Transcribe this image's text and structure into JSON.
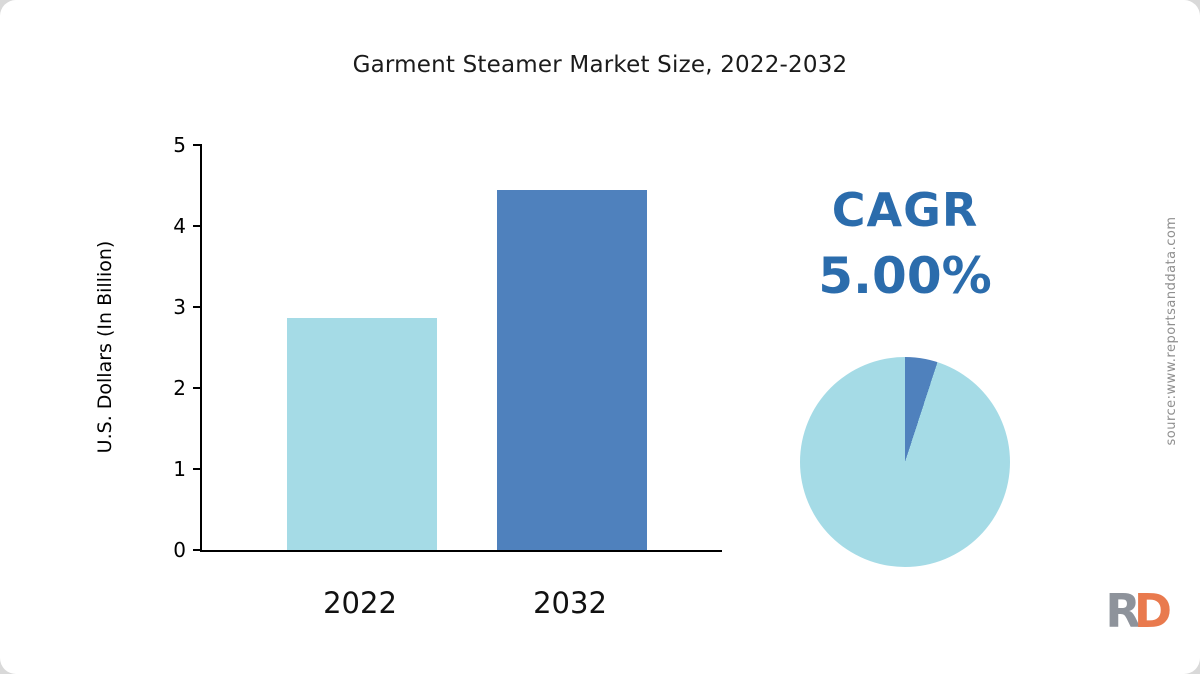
{
  "cagr": {
    "label": "CAGR",
    "value": "5.00%"
  },
  "source_note": "source:www.reportsanddata.com",
  "logo": {
    "r": "R",
    "d": "D"
  },
  "chart_data": [
    {
      "type": "bar",
      "title": "Garment Steamer Market Size, 2022-2032",
      "categories": [
        "2022",
        "2032"
      ],
      "values": [
        2.87,
        4.45
      ],
      "colors": [
        "#a5dbe6",
        "#4f81bd"
      ],
      "xlabel": "",
      "ylabel": "U.S. Dollars (In Billion)",
      "ylim": [
        0,
        5
      ],
      "yticks": [
        0,
        1,
        2,
        3,
        4,
        5
      ],
      "grid": false,
      "legend": false
    },
    {
      "type": "pie",
      "values": [
        5,
        95
      ],
      "colors": [
        "#4f81bd",
        "#a5dbe6"
      ],
      "legend": false
    }
  ]
}
